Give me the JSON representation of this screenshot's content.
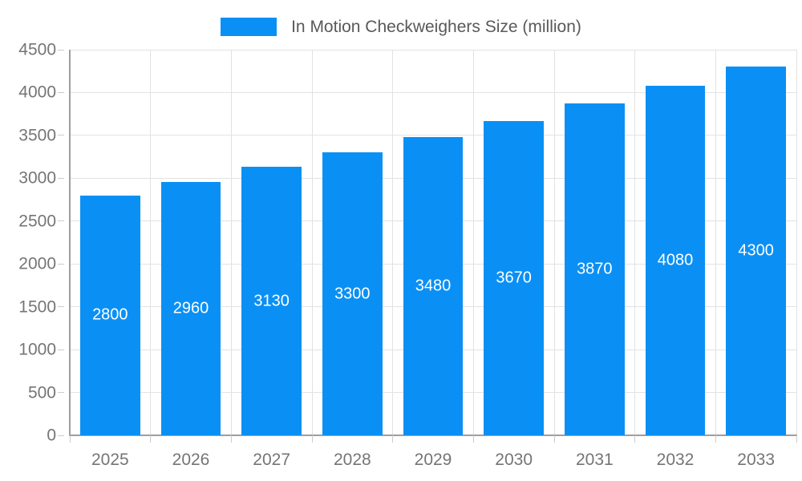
{
  "chart_data": {
    "type": "bar",
    "title": "In Motion Checkweighers Size (million)",
    "categories": [
      "2025",
      "2026",
      "2027",
      "2028",
      "2029",
      "2030",
      "2031",
      "2032",
      "2033"
    ],
    "values": [
      2800,
      2960,
      3130,
      3300,
      3480,
      3670,
      3870,
      4080,
      4300
    ],
    "xlabel": "",
    "ylabel": "",
    "ylim": [
      0,
      4500
    ],
    "yticks": [
      0,
      500,
      1000,
      1500,
      2000,
      2500,
      3000,
      3500,
      4000,
      4500
    ],
    "grid": true,
    "legend_position": "top",
    "value_labels_position": "center-inside"
  },
  "style": {
    "bar_color": "#0a90f5",
    "value_label_color": "#ffffff",
    "grid_color": "#e2e2e2",
    "axis_line_color": "#9e9e9e",
    "tick_mark_color": "#cccccc",
    "tick_label_color": "#757575",
    "title_color": "#58595b"
  }
}
